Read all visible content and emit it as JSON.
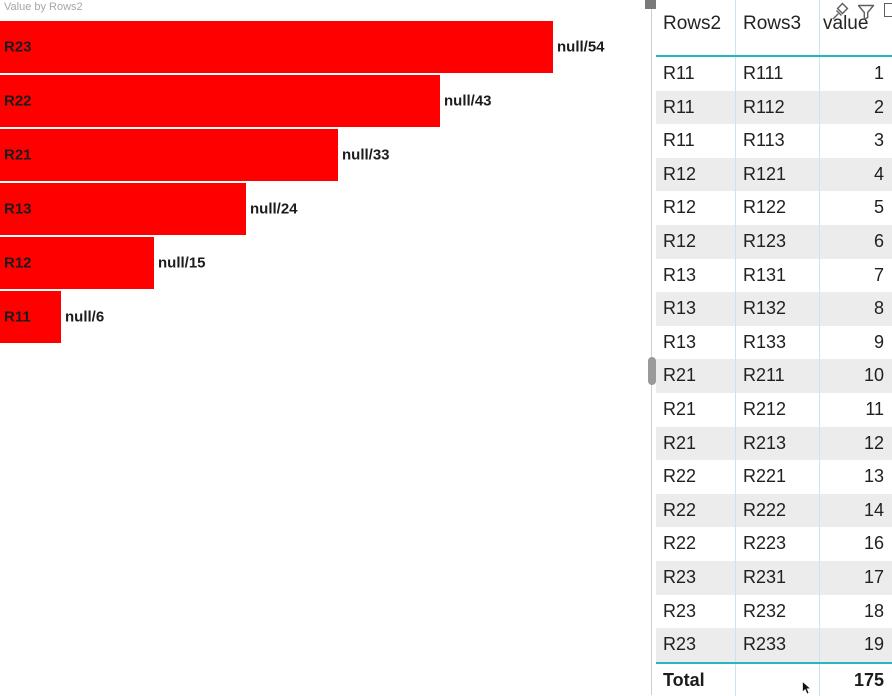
{
  "chart_data": {
    "type": "bar",
    "orientation": "horizontal",
    "title": "Value by Rows2",
    "categories": [
      "R23",
      "R22",
      "R21",
      "R13",
      "R12",
      "R11"
    ],
    "values": [
      54,
      43,
      33,
      24,
      15,
      6
    ],
    "value_labels": [
      "null/54",
      "null/43",
      "null/33",
      "null/24",
      "null/15",
      "null/6"
    ],
    "xlim": [
      0,
      54
    ],
    "legend": "none",
    "grid": false
  },
  "table": {
    "columns": [
      "Rows2",
      "Rows3",
      "value"
    ],
    "rows": [
      [
        "R11",
        "R111",
        "1"
      ],
      [
        "R11",
        "R112",
        "2"
      ],
      [
        "R11",
        "R113",
        "3"
      ],
      [
        "R12",
        "R121",
        "4"
      ],
      [
        "R12",
        "R122",
        "5"
      ],
      [
        "R12",
        "R123",
        "6"
      ],
      [
        "R13",
        "R131",
        "7"
      ],
      [
        "R13",
        "R132",
        "8"
      ],
      [
        "R13",
        "R133",
        "9"
      ],
      [
        "R21",
        "R211",
        "10"
      ],
      [
        "R21",
        "R212",
        "11"
      ],
      [
        "R21",
        "R213",
        "12"
      ],
      [
        "R22",
        "R221",
        "13"
      ],
      [
        "R22",
        "R222",
        "14"
      ],
      [
        "R22",
        "R223",
        "16"
      ],
      [
        "R23",
        "R231",
        "17"
      ],
      [
        "R23",
        "R232",
        "18"
      ],
      [
        "R23",
        "R233",
        "19"
      ]
    ],
    "total": {
      "label": "Total",
      "value": "175"
    }
  },
  "visual_header": {
    "icons": [
      "pin-icon",
      "filter-icon",
      "more-options-icon-partial"
    ]
  },
  "colors": {
    "bar": "#FF0000",
    "accent_line": "#28B4C3",
    "column_separator": "#C5E8EE",
    "alt_row": "#ECECEC",
    "table_text": "#212121",
    "chart_title": "#A6A6A6",
    "bar_label": "#1C1C1C",
    "icon_gray": "#5F5F5F"
  }
}
